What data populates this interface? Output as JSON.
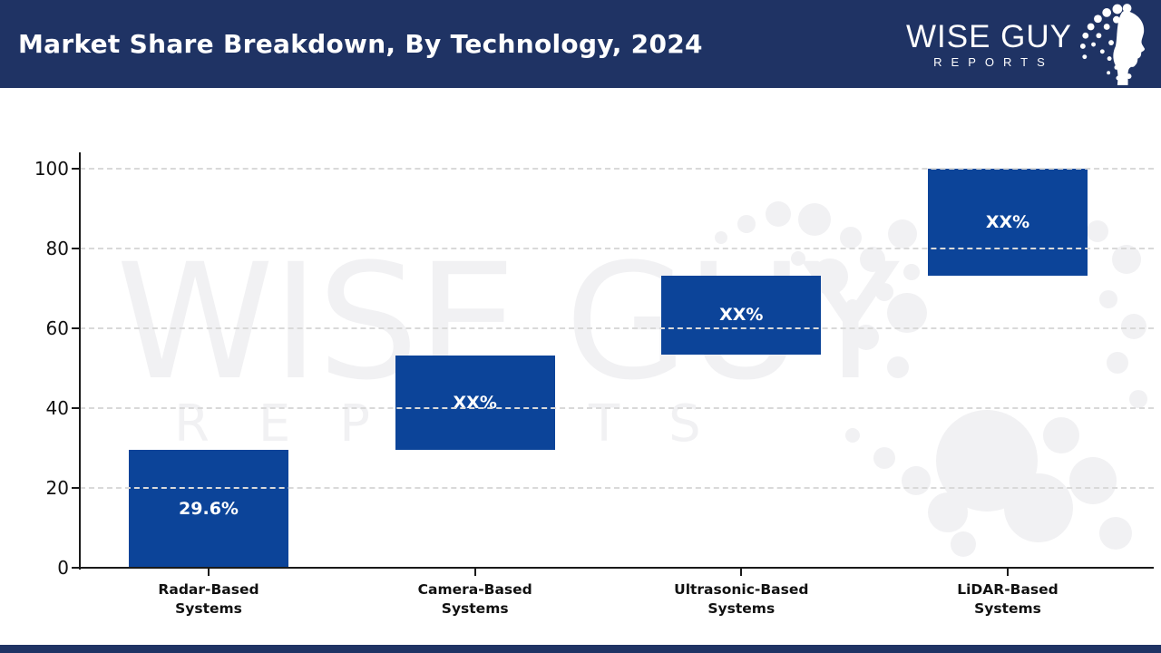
{
  "header": {
    "title": "Market Share Breakdown, By Technology, 2024",
    "bg_color": "#1f3364",
    "logo_line1": "WISE GUY",
    "logo_line2": "REPORTS"
  },
  "watermark": {
    "line1": "WISE GUY",
    "line2": "REPORTS",
    "color": "#f1f1f3"
  },
  "chart_data": {
    "type": "bar",
    "subtype": "waterfall",
    "title": "Market Share Breakdown, By Technology, 2024",
    "xlabel": "",
    "ylabel": "",
    "ylim": [
      0,
      104
    ],
    "yticks": [
      "0",
      "20",
      "40",
      "60",
      "80",
      "100"
    ],
    "ytick_values": [
      0,
      20,
      40,
      60,
      80,
      100
    ],
    "grid": "horizontal-dashed",
    "legend_position": "none",
    "bar_color": "#0c4499",
    "bar_label_color": "#ffffff",
    "categories": [
      "Radar-Based Systems",
      "Camera-Based Systems",
      "Ultrasonic-Based Systems",
      "LiDAR-Based Systems"
    ],
    "category_label_lines": [
      [
        "Radar-Based",
        "Systems"
      ],
      [
        "Camera-Based",
        "Systems"
      ],
      [
        "Ultrasonic-Based",
        "Systems"
      ],
      [
        "LiDAR-Based",
        "Systems"
      ]
    ],
    "segments": [
      {
        "category": "Radar-Based Systems",
        "start": 0,
        "end": 29.6,
        "label": "29.6%"
      },
      {
        "category": "Camera-Based Systems",
        "start": 29.6,
        "end": 53.2,
        "label": "XX%"
      },
      {
        "category": "Ultrasonic-Based Systems",
        "start": 53.4,
        "end": 73.2,
        "label": "XX%"
      },
      {
        "category": "LiDAR-Based Systems",
        "start": 73.2,
        "end": 100,
        "label": "XX%"
      }
    ]
  },
  "footer": {
    "bg_color": "#1f3364"
  }
}
